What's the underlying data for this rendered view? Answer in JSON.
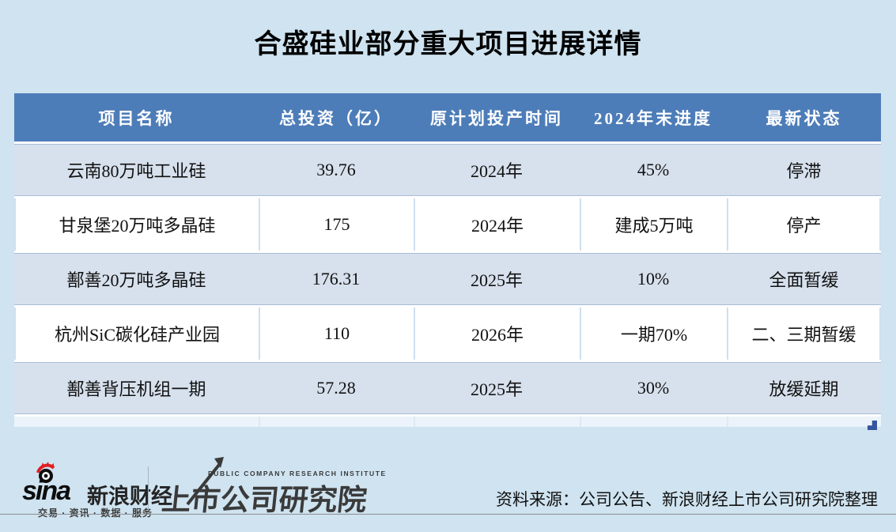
{
  "page": {
    "title": "合盛硅业部分重大项目进展详情",
    "background_color": "#cfe3f0"
  },
  "chart_data": {
    "type": "table",
    "title": "合盛硅业部分重大项目进展详情",
    "columns": [
      "项目名称",
      "总投资（亿）",
      "原计划投产时间",
      "2024年末进度",
      "最新状态"
    ],
    "rows": [
      [
        "云南80万吨工业硅",
        "39.76",
        "2024年",
        "45%",
        "停滞"
      ],
      [
        "甘泉堡20万吨多晶硅",
        "175",
        "2024年",
        "建成5万吨",
        "停产"
      ],
      [
        "鄯善20万吨多晶硅",
        "176.31",
        "2025年",
        "10%",
        "全面暂缓"
      ],
      [
        "杭州SiC碳化硅产业园",
        "110",
        "2026年",
        "一期70%",
        "二、三期暂缓"
      ],
      [
        "鄯善背压机组一期",
        "57.28",
        "2025年",
        "30%",
        "放缓延期"
      ]
    ],
    "layout_hints": {
      "header_bg": "#4d7db8",
      "header_text_color": "#ffffff",
      "alt_row_bg": "#d7e1ed",
      "white_row_bg": "#ffffff",
      "grid": "horizontal white separators, vertical light-blue dividers on white rows"
    }
  },
  "footer": {
    "sina_logo_text": "sina",
    "sina_brand": "新浪财经",
    "sina_tagline": "交易 · 资讯 · 数据 · 服务",
    "institute_en": "PUBLIC COMPANY RESEARCH INSTITUTE",
    "institute_cn": "上市公司研究院",
    "source": "资料来源：公司公告、新浪财经上市公司研究院整理",
    "sina_red": "#e02020",
    "logo_color": "#3a3a3a"
  }
}
